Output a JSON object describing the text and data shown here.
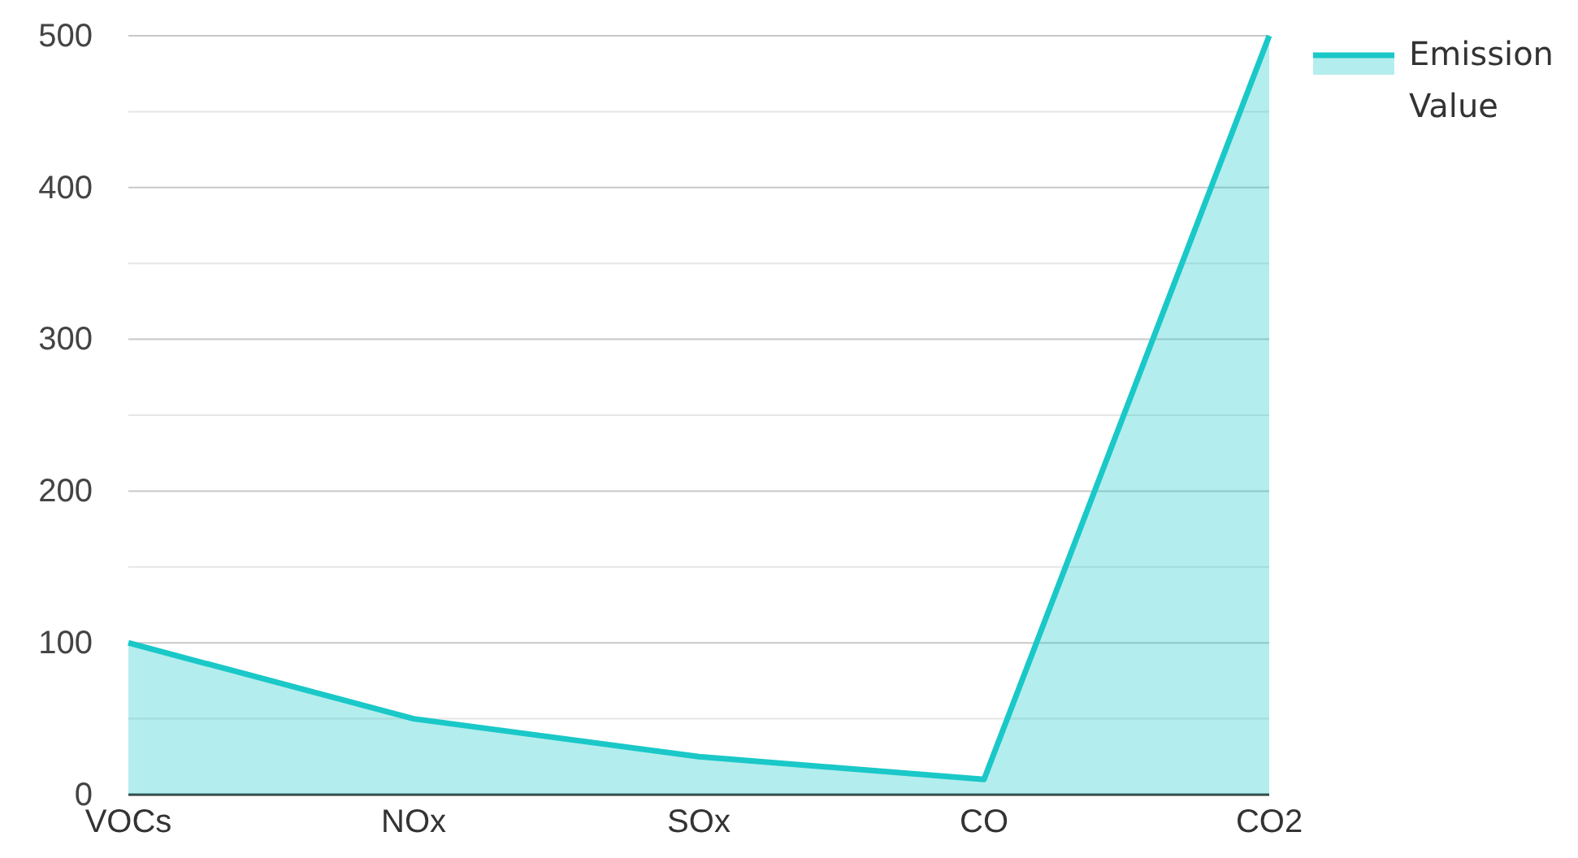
{
  "chart_data": {
    "type": "area",
    "categories": [
      "VOCs",
      "NOx",
      "SOx",
      "CO",
      "CO2"
    ],
    "series": [
      {
        "name": "Emission Value",
        "color": "#1ac8c8",
        "values": [
          100,
          50,
          25,
          10,
          500
        ]
      }
    ],
    "ylim": [
      0,
      500
    ],
    "yticks": [
      0,
      {
        "value": 50,
        "label": null
      },
      100,
      {
        "value": 150,
        "label": null
      },
      200,
      {
        "value": 250,
        "label": null
      },
      300,
      {
        "value": 350,
        "label": null
      },
      400,
      {
        "value": 450,
        "label": null
      },
      500
    ],
    "grid": "y",
    "legend": "top right",
    "marker": "none"
  }
}
